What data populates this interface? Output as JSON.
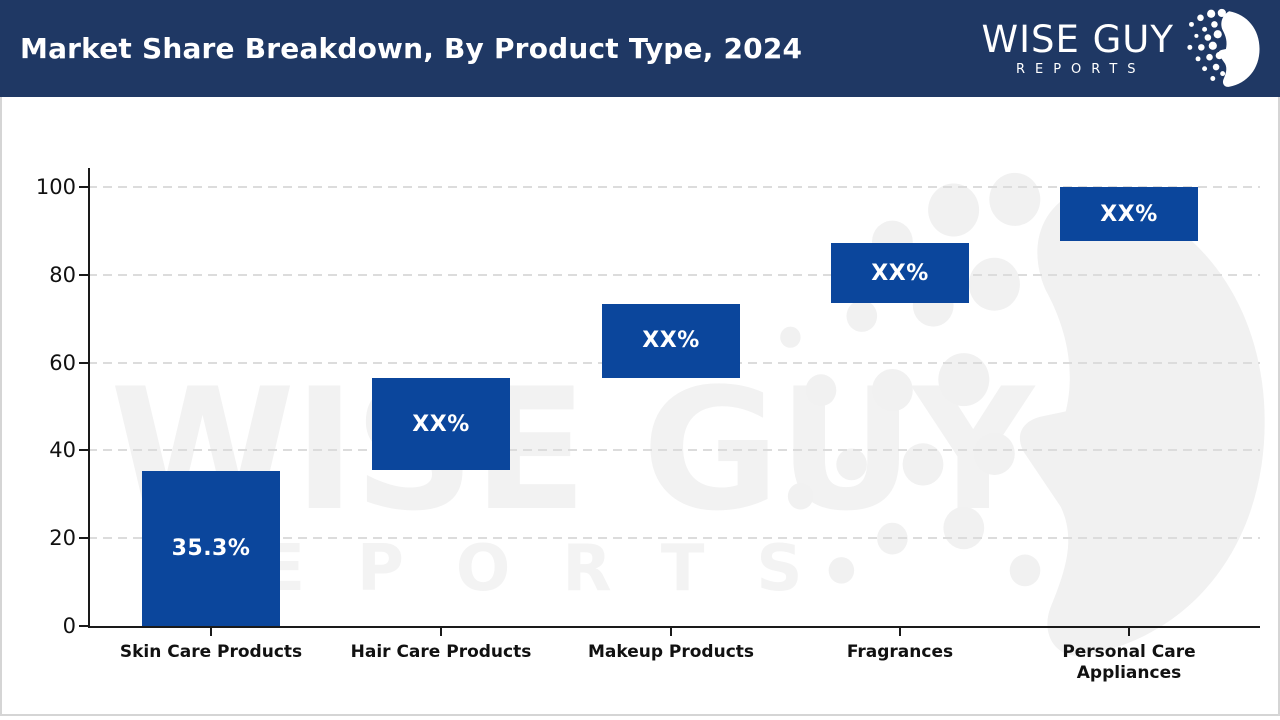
{
  "header": {
    "title": "Market Share Breakdown, By Product Type, 2024",
    "logo": {
      "name": "WISE GUY",
      "sub": "REPORTS"
    },
    "bg_color": "#1f3864",
    "title_color": "#ffffff"
  },
  "watermark": {
    "line1": "WISE GUY",
    "line2": "REPORTS"
  },
  "chart_data": {
    "type": "bar",
    "subtype": "waterfall",
    "title": "Market Share Breakdown, By Product Type, 2024",
    "xlabel": "",
    "ylabel": "",
    "ylim": [
      0,
      100
    ],
    "yticks": [
      0,
      20,
      40,
      60,
      80,
      100
    ],
    "grid": true,
    "legend": false,
    "categories": [
      "Skin Care Products",
      "Hair Care Products",
      "Makeup Products",
      "Fragrances",
      "Personal Care\nAppliances"
    ],
    "bars": [
      {
        "category": "Skin Care Products",
        "base": 0,
        "top": 35.3,
        "label": "35.3%"
      },
      {
        "category": "Hair Care Products",
        "base": 35.5,
        "top": 56.5,
        "label": "XX%"
      },
      {
        "category": "Makeup Products",
        "base": 56.6,
        "top": 73.4,
        "label": "XX%"
      },
      {
        "category": "Fragrances",
        "base": 73.5,
        "top": 87.3,
        "label": "XX%"
      },
      {
        "category": "Personal Care Appliances",
        "base": 87.6,
        "top": 100,
        "label": "XX%"
      }
    ],
    "bar_color": "#0b469c",
    "bar_label_color": "#ffffff",
    "axis_color": "#1a1a1a",
    "gridline_color": "#dcdcdc",
    "tick_label_color": "#111111"
  }
}
